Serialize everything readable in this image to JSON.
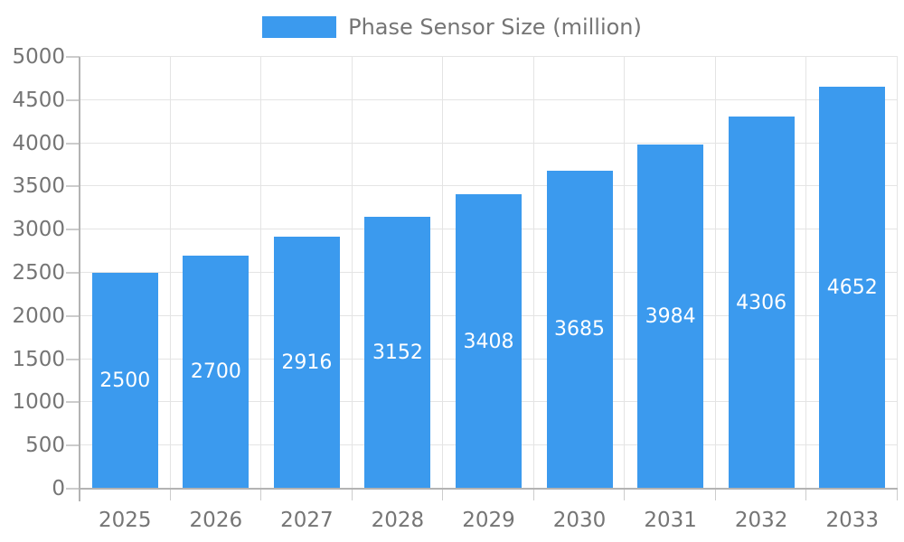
{
  "chart_data": {
    "type": "bar",
    "title": "Phase Sensor Size (million)",
    "legend": [
      "Phase Sensor Size (million)"
    ],
    "legend_position": "top",
    "categories": [
      "2025",
      "2026",
      "2027",
      "2028",
      "2029",
      "2030",
      "2031",
      "2032",
      "2033"
    ],
    "values": [
      2500,
      2700,
      2916,
      3152,
      3408,
      3685,
      3984,
      4306,
      4652
    ],
    "xlabel": "",
    "ylabel": "",
    "ylim": [
      0,
      5000
    ],
    "y_ticks": [
      0,
      500,
      1000,
      1500,
      2000,
      2500,
      3000,
      3500,
      4000,
      4500,
      5000
    ],
    "grid": true,
    "value_labels_inside_bars": true,
    "colors": {
      "bar": "#3b9aee",
      "grid": "#e4e4e4",
      "axis": "#b3b3b3",
      "tick": "#cccccc",
      "text": "#757575",
      "value_label": "#ffffff",
      "background": "#ffffff"
    }
  }
}
